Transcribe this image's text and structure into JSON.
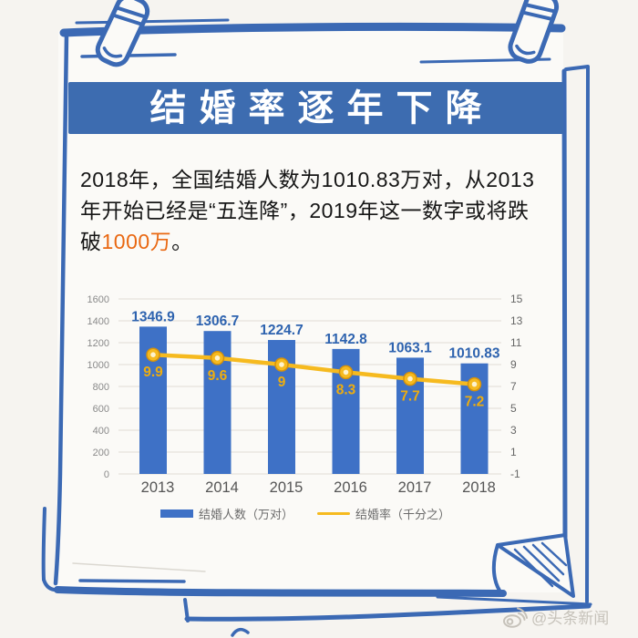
{
  "poster": {
    "title": "结婚率逐年下降",
    "paragraph": {
      "line1": "2018年，全国结婚人数为1010.83万对，从2013",
      "line2": "年开始已经是“五连降”，2019年这一数字或将跌",
      "line3_pre": "破",
      "line3_highlight": "1000万",
      "line3_post": "。"
    },
    "watermark": "@头条新闻",
    "colors": {
      "banner_blue": "#3d6cb0",
      "frame_blue": "#3b69b4",
      "highlight_orange": "#e96812",
      "watermark_gray": "#c6c2ba"
    }
  },
  "chart_data": {
    "type": "bar+line",
    "title": "",
    "categories": [
      "2013",
      "2014",
      "2015",
      "2016",
      "2017",
      "2018"
    ],
    "series": [
      {
        "name": "结婚人数（万对）",
        "type": "bar",
        "axis": "left",
        "color": "#3e71c6",
        "label_color": "#2e63af",
        "values": [
          1346.9,
          1306.7,
          1224.7,
          1142.8,
          1063.1,
          1010.83
        ]
      },
      {
        "name": "结婚率（千分之）",
        "type": "line",
        "axis": "right",
        "color": "#f6ba1f",
        "marker_ring": "#d6920b",
        "marker_core": "#fdf3cf",
        "label_color": "#eead0e",
        "values": [
          9.9,
          9.6,
          9,
          8.3,
          7.7,
          7.2
        ]
      }
    ],
    "left_axis": {
      "min": 0,
      "max": 1600,
      "step": 200,
      "ticks": [
        0,
        200,
        400,
        600,
        800,
        1000,
        1200,
        1400,
        1600
      ]
    },
    "right_axis": {
      "min": -1,
      "max": 15,
      "step": 2,
      "ticks": [
        -1,
        1,
        3,
        5,
        7,
        9,
        11,
        13,
        15
      ]
    },
    "grid": true,
    "legend_position": "bottom"
  }
}
